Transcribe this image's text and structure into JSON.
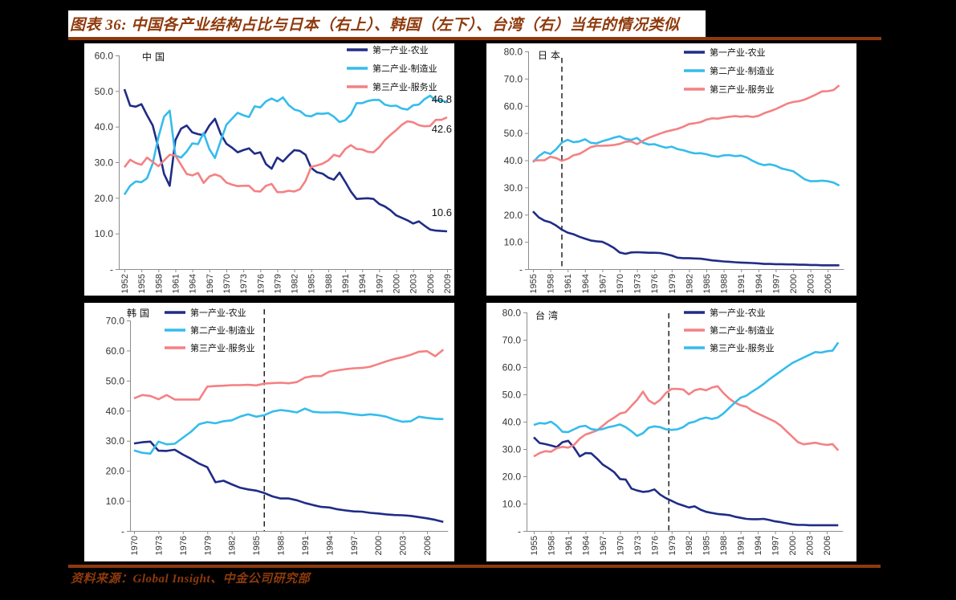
{
  "title": "图表 36:  中国各产业结构占比与日本（右上）、韩国（左下）、台湾（右）当年的情况类似",
  "source": "资料来源：Global Insight、中金公司研究部",
  "colors": {
    "rust": "#8e3a0c",
    "navy": "#1f2c86",
    "cyan": "#35bcec",
    "salmon": "#f48183",
    "axis": "#8c8c8c",
    "tick_text": "#333333",
    "legend_text": "#111111"
  },
  "chart_data": [
    {
      "id": "china",
      "type": "line",
      "label": "中国",
      "ylim": [
        0,
        60
      ],
      "ytick_step": 10,
      "zero_label": "-",
      "x_start": 1952,
      "x_tick_end": 2009,
      "x_tick_step": 3,
      "dashed_year": null,
      "series": [
        {
          "name": "第一产业-农业",
          "color_key": "navy",
          "values": [
            50.5,
            45.9,
            45.6,
            46.3,
            43.2,
            40.3,
            34.1,
            26.7,
            23.4,
            36.2,
            39.4,
            40.3,
            38.4,
            37.9,
            37.6,
            40.3,
            42.2,
            38.0,
            35.2,
            34.1,
            32.8,
            33.4,
            33.9,
            32.4,
            32.8,
            29.5,
            28.2,
            31.3,
            30.2,
            31.9,
            33.4,
            33.2,
            32.1,
            28.4,
            27.2,
            26.8,
            25.7,
            25.1,
            27.1,
            24.5,
            21.8,
            19.7,
            19.8,
            19.9,
            19.7,
            18.3,
            17.6,
            16.5,
            15.1,
            14.4,
            13.7,
            12.8,
            13.4,
            12.2,
            11.1,
            10.8,
            10.7,
            10.6
          ]
        },
        {
          "name": "第二产业-制造业",
          "color_key": "cyan",
          "values": [
            20.9,
            23.4,
            24.6,
            24.4,
            25.5,
            29.7,
            37.0,
            42.8,
            44.5,
            31.9,
            31.3,
            33.0,
            35.3,
            35.1,
            38.2,
            33.7,
            31.2,
            36.0,
            40.5,
            42.2,
            43.9,
            43.2,
            42.7,
            45.7,
            45.4,
            47.1,
            47.9,
            47.1,
            48.2,
            46.1,
            44.8,
            44.4,
            43.1,
            42.9,
            43.7,
            43.6,
            43.8,
            42.8,
            41.3,
            41.8,
            43.4,
            46.6,
            46.6,
            47.2,
            47.5,
            47.5,
            46.2,
            45.8,
            45.9,
            45.1,
            44.8,
            46.0,
            46.2,
            47.7,
            48.7,
            47.3,
            47.4,
            46.8
          ]
        },
        {
          "name": "第三产业-服务业",
          "color_key": "salmon",
          "values": [
            28.6,
            30.7,
            29.8,
            29.3,
            31.3,
            30.1,
            28.9,
            30.5,
            32.1,
            31.9,
            29.3,
            26.7,
            26.3,
            27.0,
            24.2,
            26.0,
            26.6,
            26.0,
            24.3,
            23.7,
            23.3,
            23.4,
            23.4,
            21.9,
            21.8,
            23.4,
            23.9,
            21.6,
            21.6,
            22.0,
            21.8,
            22.4,
            24.8,
            28.7,
            29.1,
            29.6,
            30.5,
            32.1,
            31.6,
            33.7,
            34.8,
            33.7,
            33.6,
            32.9,
            32.8,
            34.2,
            36.2,
            37.7,
            39.0,
            40.5,
            41.5,
            41.2,
            40.4,
            40.1,
            40.2,
            41.9,
            41.9,
            42.6
          ]
        }
      ],
      "annotations": [
        {
          "text": "46.8",
          "y": 47.6
        },
        {
          "text": "42.6",
          "y": 39.2
        },
        {
          "text": "10.6",
          "y": 15.8
        }
      ]
    },
    {
      "id": "japan",
      "type": "line",
      "label": "日本",
      "ylim": [
        0,
        80
      ],
      "ytick_step": 10,
      "zero_label": "-",
      "x_start": 1955,
      "x_tick_end": 2006,
      "x_tick_step": 3,
      "dashed_year": 1960,
      "series": [
        {
          "name": "第一产业-农业",
          "color_key": "navy",
          "values": [
            21.2,
            19.0,
            17.8,
            17.2,
            16.0,
            14.5,
            13.4,
            12.8,
            11.9,
            11.2,
            10.5,
            10.2,
            10.0,
            9.0,
            7.8,
            6.1,
            5.6,
            6.1,
            6.2,
            6.1,
            6.0,
            6.0,
            5.9,
            5.5,
            5.0,
            4.2,
            4.0,
            4.0,
            3.9,
            3.8,
            3.5,
            3.2,
            3.0,
            2.8,
            2.7,
            2.5,
            2.4,
            2.3,
            2.2,
            2.1,
            1.9,
            1.9,
            1.8,
            1.8,
            1.7,
            1.7,
            1.6,
            1.6,
            1.5,
            1.5,
            1.4,
            1.4,
            1.4,
            1.4
          ]
        },
        {
          "name": "第二产业-制造业",
          "color_key": "cyan",
          "values": [
            39.3,
            41.5,
            43.0,
            42.3,
            44.0,
            46.5,
            47.5,
            46.6,
            46.9,
            47.7,
            46.4,
            46.2,
            47.0,
            47.6,
            48.3,
            48.8,
            47.8,
            47.5,
            48.2,
            46.5,
            45.8,
            45.9,
            45.2,
            44.6,
            45.0,
            44.1,
            43.7,
            43.0,
            42.5,
            42.6,
            42.2,
            41.6,
            41.3,
            41.8,
            41.9,
            41.5,
            41.7,
            41.0,
            39.8,
            38.8,
            38.2,
            38.5,
            38.0,
            37.0,
            36.5,
            36.0,
            34.5,
            33.0,
            32.3,
            32.3,
            32.5,
            32.3,
            31.8,
            30.7
          ]
        },
        {
          "name": "第三产业-服务业",
          "color_key": "salmon",
          "values": [
            39.8,
            40.0,
            40.0,
            41.3,
            40.8,
            39.8,
            40.5,
            41.8,
            42.3,
            43.5,
            44.8,
            45.3,
            45.3,
            45.4,
            45.6,
            46.0,
            46.8,
            46.9,
            45.9,
            47.1,
            48.2,
            49.0,
            49.8,
            50.5,
            51.0,
            51.5,
            52.3,
            53.3,
            53.6,
            54.0,
            54.9,
            55.4,
            55.3,
            55.7,
            56.0,
            56.2,
            56.0,
            56.2,
            55.9,
            56.3,
            57.3,
            58.0,
            58.8,
            59.8,
            60.8,
            61.4,
            61.7,
            62.3,
            63.2,
            64.2,
            65.3,
            65.4,
            65.8,
            67.5
          ]
        }
      ],
      "annotations": []
    },
    {
      "id": "korea",
      "type": "line",
      "label": "韩国",
      "ylim": [
        0,
        70
      ],
      "ytick_step": 10,
      "zero_label": "-",
      "x_start": 1970,
      "x_tick_end": 2006,
      "x_tick_step": 3,
      "dashed_year": 1986,
      "series": [
        {
          "name": "第一产业-农业",
          "color_key": "navy",
          "values": [
            29.1,
            29.5,
            29.7,
            26.7,
            26.6,
            27.0,
            25.4,
            24.0,
            22.4,
            21.2,
            16.2,
            16.7,
            15.5,
            14.4,
            13.8,
            13.4,
            12.6,
            11.5,
            10.8,
            10.8,
            10.2,
            9.3,
            8.6,
            8.0,
            7.8,
            7.2,
            6.8,
            6.5,
            6.4,
            6.0,
            5.8,
            5.5,
            5.3,
            5.2,
            5.0,
            4.6,
            4.2,
            3.7,
            3.0
          ]
        },
        {
          "name": "第二产业-制造业",
          "color_key": "cyan",
          "values": [
            26.8,
            26.0,
            25.7,
            29.7,
            28.8,
            29.0,
            31.0,
            33.0,
            35.5,
            36.2,
            35.8,
            36.5,
            36.8,
            38.0,
            38.8,
            38.0,
            38.5,
            39.7,
            40.2,
            39.9,
            39.4,
            40.7,
            39.6,
            39.4,
            39.4,
            39.5,
            39.2,
            38.8,
            38.5,
            38.8,
            38.5,
            38.0,
            37.0,
            36.3,
            36.5,
            38.0,
            37.6,
            37.3,
            37.2
          ]
        },
        {
          "name": "第三产业-服务业",
          "color_key": "salmon",
          "values": [
            44.1,
            45.2,
            44.9,
            43.8,
            45.2,
            43.7,
            43.7,
            43.7,
            43.7,
            48.0,
            48.2,
            48.3,
            48.5,
            48.5,
            48.6,
            48.4,
            49.0,
            49.2,
            49.3,
            49.1,
            49.5,
            51.0,
            51.5,
            51.5,
            53.0,
            53.4,
            53.8,
            54.1,
            54.2,
            54.6,
            55.5,
            56.4,
            57.2,
            57.8,
            58.6,
            59.6,
            59.8,
            58.1,
            60.3
          ]
        }
      ],
      "annotations": []
    },
    {
      "id": "taiwan",
      "type": "line",
      "label": "台湾",
      "ylim": [
        0,
        80
      ],
      "ytick_step": 10,
      "zero_label": "-",
      "x_start": 1955,
      "x_tick_end": 2006,
      "x_tick_step": 3,
      "dashed_year": 1978.5,
      "series": [
        {
          "name": "第一产业-农业",
          "color_key": "navy",
          "values": [
            34.3,
            32.2,
            31.8,
            31.3,
            30.7,
            32.5,
            33.0,
            30.5,
            27.3,
            28.5,
            28.4,
            26.5,
            24.3,
            23.0,
            21.5,
            19.0,
            18.8,
            15.5,
            14.8,
            14.3,
            14.5,
            15.2,
            13.3,
            12.0,
            11.0,
            10.0,
            9.3,
            8.6,
            9.0,
            7.8,
            7.0,
            6.6,
            6.2,
            6.0,
            5.8,
            5.2,
            4.8,
            4.4,
            4.3,
            4.3,
            4.4,
            4.0,
            3.5,
            3.2,
            2.8,
            2.4,
            2.2,
            2.2,
            2.1,
            2.1,
            2.1,
            2.1,
            2.1,
            2.1
          ]
        },
        {
          "name": "第二产业-制造业",
          "color_key": "salmon",
          "values": [
            27.3,
            28.5,
            29.2,
            29.0,
            30.3,
            30.8,
            30.5,
            31.5,
            33.8,
            35.3,
            36.0,
            36.8,
            38.5,
            40.2,
            41.5,
            43.0,
            43.5,
            45.8,
            48.0,
            51.0,
            47.8,
            46.5,
            48.0,
            50.5,
            52.0,
            52.0,
            51.8,
            50.0,
            51.5,
            52.0,
            51.5,
            52.5,
            53.0,
            50.5,
            48.5,
            47.0,
            46.0,
            45.5,
            44.0,
            43.0,
            42.0,
            41.0,
            40.0,
            38.5,
            36.5,
            34.5,
            32.5,
            31.7,
            32.0,
            32.3,
            31.8,
            31.5,
            31.8,
            29.5
          ]
        },
        {
          "name": "第三产业-服务业",
          "color_key": "cyan",
          "values": [
            38.8,
            39.5,
            39.3,
            40.0,
            38.5,
            36.3,
            36.2,
            37.2,
            38.2,
            38.5,
            37.3,
            37.0,
            37.3,
            38.0,
            38.4,
            39.0,
            38.0,
            36.5,
            34.8,
            35.8,
            37.8,
            38.3,
            38.0,
            37.2,
            37.0,
            37.2,
            38.0,
            39.5,
            40.0,
            41.0,
            41.5,
            41.0,
            41.5,
            43.0,
            45.0,
            47.0,
            48.8,
            49.5,
            51.0,
            52.3,
            53.8,
            55.5,
            57.0,
            58.5,
            60.0,
            61.5,
            62.5,
            63.5,
            64.5,
            65.5,
            65.3,
            65.8,
            66.0,
            69.0
          ]
        }
      ],
      "annotations": []
    }
  ]
}
